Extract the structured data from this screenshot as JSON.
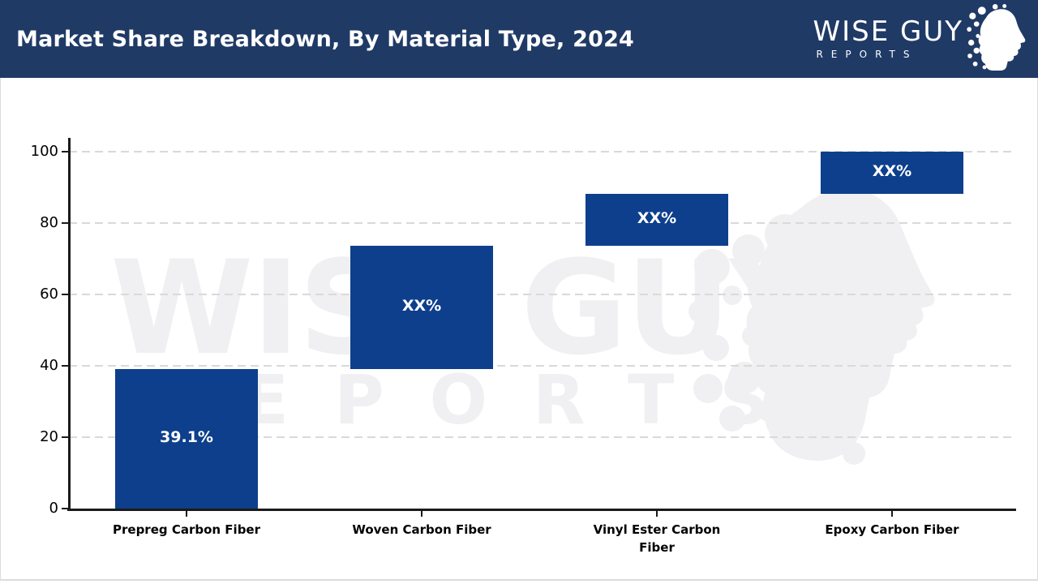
{
  "header": {
    "title": "Market Share Breakdown, By Material Type, 2024",
    "logo": {
      "wordmark": "WISE GUY",
      "sub": "REPORTS"
    }
  },
  "watermark": {
    "wordmark": "WISE GUY",
    "sub": "REPORTS"
  },
  "chart_data": {
    "type": "bar",
    "subtype": "waterfall",
    "title": "Market Share Breakdown, By Material Type, 2024",
    "categories": [
      "Prepreg Carbon Fiber",
      "Woven Carbon Fiber",
      "Vinyl Ester Carbon Fiber",
      "Epoxy Carbon Fiber"
    ],
    "series": [
      {
        "name": "Market share (%)",
        "segments": [
          {
            "start": 0,
            "end": 39.1
          },
          {
            "start": 39.1,
            "end": 73.6
          },
          {
            "start": 73.6,
            "end": 88.2
          },
          {
            "start": 88.2,
            "end": 100
          }
        ]
      }
    ],
    "bar_labels": [
      "39.1%",
      "XX%",
      "XX%",
      "XX%"
    ],
    "ylim": [
      0,
      100
    ],
    "yticks": [
      0,
      20,
      40,
      60,
      80,
      100
    ],
    "grid": {
      "axis": "y",
      "style": "dashed",
      "color": "#d9d9d9"
    },
    "legend": "none",
    "bar_color": "#0d3f8c",
    "bar_label_color": "#ffffff"
  },
  "colors": {
    "header_bg": "#203a66",
    "bar_blue": "#0d3f8c",
    "grid_gray": "#d9d9d9",
    "watermark_gray": "#f0f0f2",
    "axis_black": "#1a1a1a"
  }
}
